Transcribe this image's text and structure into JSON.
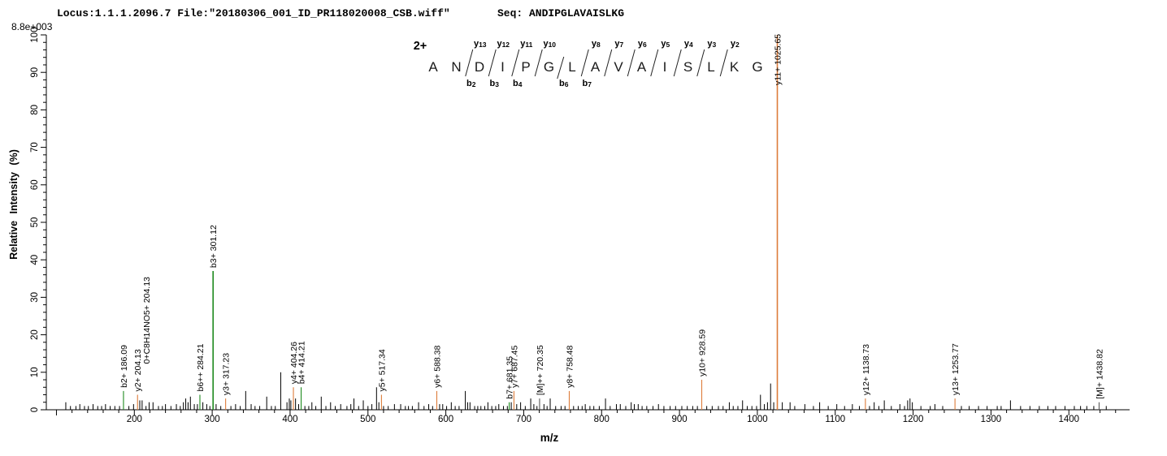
{
  "header": {
    "locus_file": "Locus:1.1.1.2096.7 File:\"20180306_001_ID_PR118020008_CSB.wiff\"",
    "seq_label": "Seq: ANDIPGLAVAISLKG",
    "intensity_scale": "8.8e+003"
  },
  "colors": {
    "header_blue": "#2828c0",
    "charge_blue": "#1717dd",
    "y_ion": "#dd7c3a",
    "b_ion": "#1f8a1f",
    "neutral_loss": "#3ccc3c",
    "precursor": "#7a7a7a",
    "precursor_line": "#5a5a5a",
    "noise": "#000000",
    "axis": "#000000"
  },
  "sequence_panel": {
    "charge": "2+",
    "residues": [
      "A",
      "N",
      "D",
      "I",
      "P",
      "G",
      "L",
      "A",
      "V",
      "A",
      "I",
      "S",
      "L",
      "K",
      "G"
    ],
    "y_ions": [
      {
        "letter": "y",
        "sub": "13",
        "gap": 1
      },
      {
        "letter": "y",
        "sub": "12",
        "gap": 2
      },
      {
        "letter": "y",
        "sub": "11",
        "gap": 3
      },
      {
        "letter": "y",
        "sub": "10",
        "gap": 4
      },
      {
        "letter": "y",
        "sub": "8",
        "gap": 6
      },
      {
        "letter": "y",
        "sub": "7",
        "gap": 7
      },
      {
        "letter": "y",
        "sub": "6",
        "gap": 8
      },
      {
        "letter": "y",
        "sub": "5",
        "gap": 9
      },
      {
        "letter": "y",
        "sub": "4",
        "gap": 10
      },
      {
        "letter": "y",
        "sub": "3",
        "gap": 11
      },
      {
        "letter": "y",
        "sub": "2",
        "gap": 12
      }
    ],
    "b_ions": [
      {
        "letter": "b",
        "sub": "2",
        "gap": 1
      },
      {
        "letter": "b",
        "sub": "3",
        "gap": 2
      },
      {
        "letter": "b",
        "sub": "4",
        "gap": 3
      },
      {
        "letter": "b",
        "sub": "6",
        "gap": 5
      },
      {
        "letter": "b",
        "sub": "7",
        "gap": 6
      }
    ]
  },
  "chart_data": {
    "type": "bar",
    "subtype": "ms2-stick-spectrum",
    "title": "",
    "xlabel": "m/z",
    "ylabel": "Relative Intensity (%)",
    "xlim": [
      87,
      1478
    ],
    "ylim": [
      0,
      100
    ],
    "x_tick_labels": [
      200,
      300,
      400,
      500,
      600,
      700,
      800,
      900,
      1000,
      1100,
      1200,
      1300,
      1400
    ],
    "x_minor_step": 20,
    "y_ticks": [
      0,
      10,
      20,
      30,
      40,
      50,
      60,
      70,
      80,
      90,
      100
    ],
    "y_minor_step": 2,
    "labeled_peaks": [
      {
        "mz": 186.09,
        "intensity": 5,
        "label": "b2+ 186.09",
        "ion": "b_ion"
      },
      {
        "mz": 204.13,
        "intensity": 4,
        "label": "y2+ 204.13",
        "ion": "y_ion"
      },
      {
        "mz": 204.13,
        "intensity": 4,
        "label": "0+C8H14NO5+ 204.13",
        "ion": "neutral_loss",
        "no_line": true,
        "raise": 34,
        "dx": 11
      },
      {
        "mz": 284.21,
        "intensity": 4,
        "label": "b6++ 284.21",
        "ion": "b_ion"
      },
      {
        "mz": 301.12,
        "intensity": 37,
        "label": "b3+ 301.12",
        "ion": "b_ion"
      },
      {
        "mz": 317.23,
        "intensity": 3,
        "label": "y3+ 317.23",
        "ion": "y_ion"
      },
      {
        "mz": 404.26,
        "intensity": 6,
        "label": "y4+ 404.26",
        "ion": "y_ion"
      },
      {
        "mz": 414.21,
        "intensity": 6,
        "label": "b4+ 414.21",
        "ion": "b_ion"
      },
      {
        "mz": 517.34,
        "intensity": 4,
        "label": "y5+ 517.34",
        "ion": "y_ion"
      },
      {
        "mz": 588.38,
        "intensity": 5,
        "label": "y6+ 588.38",
        "ion": "y_ion"
      },
      {
        "mz": 681.35,
        "intensity": 2,
        "label": "b7+ 681.35",
        "ion": "b_ion"
      },
      {
        "mz": 687.45,
        "intensity": 5,
        "label": "y7+ 687.45",
        "ion": "y_ion"
      },
      {
        "mz": 720.35,
        "intensity": 3,
        "label": "[M]++ 720.35",
        "ion": "precursor"
      },
      {
        "mz": 758.48,
        "intensity": 5,
        "label": "y8+ 758.48",
        "ion": "y_ion"
      },
      {
        "mz": 928.59,
        "intensity": 8,
        "label": "y10+ 928.59",
        "ion": "y_ion"
      },
      {
        "mz": 1025.65,
        "intensity": 100,
        "label": "y11+ 1025.65",
        "ion": "y_ion",
        "raise": -66
      },
      {
        "mz": 1138.73,
        "intensity": 3,
        "label": "y12+ 1138.73",
        "ion": "y_ion"
      },
      {
        "mz": 1253.77,
        "intensity": 3,
        "label": "y13+ 1253.77",
        "ion": "y_ion"
      },
      {
        "mz": 1438.82,
        "intensity": 2,
        "label": "[M]+ 1438.82",
        "ion": "precursor"
      }
    ],
    "background_peaks": [
      [
        112,
        2
      ],
      [
        118,
        1
      ],
      [
        125,
        1
      ],
      [
        130,
        1.5
      ],
      [
        136,
        1
      ],
      [
        141,
        1
      ],
      [
        147,
        1.5
      ],
      [
        153,
        1
      ],
      [
        158,
        1
      ],
      [
        163,
        1.5
      ],
      [
        169,
        1
      ],
      [
        175,
        1
      ],
      [
        181,
        1
      ],
      [
        193,
        1
      ],
      [
        199,
        1.5
      ],
      [
        207,
        2.5
      ],
      [
        210,
        2.5
      ],
      [
        215,
        1
      ],
      [
        219,
        2
      ],
      [
        224,
        2
      ],
      [
        231,
        1
      ],
      [
        236,
        1
      ],
      [
        240,
        1.5
      ],
      [
        247,
        1
      ],
      [
        254,
        1.5
      ],
      [
        259,
        1
      ],
      [
        263,
        2
      ],
      [
        266,
        3
      ],
      [
        269,
        2
      ],
      [
        272,
        3.5
      ],
      [
        277,
        1.5
      ],
      [
        281,
        1.5
      ],
      [
        288,
        2
      ],
      [
        293,
        1.5
      ],
      [
        297,
        1
      ],
      [
        305,
        1.5
      ],
      [
        311,
        1
      ],
      [
        324,
        1
      ],
      [
        330,
        1.5
      ],
      [
        336,
        1
      ],
      [
        343,
        5
      ],
      [
        350,
        1.5
      ],
      [
        355,
        1
      ],
      [
        361,
        1
      ],
      [
        370,
        3.5
      ],
      [
        376,
        1
      ],
      [
        381,
        1
      ],
      [
        388,
        10
      ],
      [
        396,
        2
      ],
      [
        399,
        3
      ],
      [
        401,
        2.5
      ],
      [
        407,
        3
      ],
      [
        411,
        1.5
      ],
      [
        419,
        1
      ],
      [
        424,
        1
      ],
      [
        428,
        2
      ],
      [
        433,
        1
      ],
      [
        440,
        3.5
      ],
      [
        446,
        1
      ],
      [
        452,
        2
      ],
      [
        458,
        1
      ],
      [
        465,
        1.5
      ],
      [
        473,
        1
      ],
      [
        478,
        1.5
      ],
      [
        482,
        3
      ],
      [
        488,
        1
      ],
      [
        494,
        2.5
      ],
      [
        500,
        1
      ],
      [
        505,
        1.5
      ],
      [
        511,
        6
      ],
      [
        514,
        2
      ],
      [
        520,
        1
      ],
      [
        526,
        1
      ],
      [
        534,
        1.5
      ],
      [
        542,
        1.5
      ],
      [
        548,
        1
      ],
      [
        552,
        1
      ],
      [
        557,
        1
      ],
      [
        565,
        2
      ],
      [
        572,
        1
      ],
      [
        578,
        1.5
      ],
      [
        583,
        1
      ],
      [
        592,
        1.5
      ],
      [
        596,
        1.5
      ],
      [
        601,
        1
      ],
      [
        607,
        2
      ],
      [
        612,
        1
      ],
      [
        617,
        1
      ],
      [
        625,
        5
      ],
      [
        628,
        2
      ],
      [
        631,
        2
      ],
      [
        637,
        1
      ],
      [
        641,
        1
      ],
      [
        645,
        1
      ],
      [
        650,
        1
      ],
      [
        654,
        2
      ],
      [
        659,
        1
      ],
      [
        664,
        1
      ],
      [
        668,
        1.5
      ],
      [
        674,
        1
      ],
      [
        679,
        1
      ],
      [
        684,
        2
      ],
      [
        691,
        1.5
      ],
      [
        696,
        2
      ],
      [
        702,
        1
      ],
      [
        709,
        3
      ],
      [
        713,
        1.5
      ],
      [
        717,
        1
      ],
      [
        726,
        1.5
      ],
      [
        730,
        1
      ],
      [
        734,
        3
      ],
      [
        741,
        1
      ],
      [
        748,
        1
      ],
      [
        753,
        1
      ],
      [
        764,
        1
      ],
      [
        770,
        1
      ],
      [
        775,
        1
      ],
      [
        779,
        1.5
      ],
      [
        785,
        1
      ],
      [
        790,
        1
      ],
      [
        797,
        1
      ],
      [
        805,
        3
      ],
      [
        811,
        1
      ],
      [
        819,
        1.5
      ],
      [
        824,
        1.5
      ],
      [
        831,
        1
      ],
      [
        838,
        2
      ],
      [
        842,
        1.5
      ],
      [
        847,
        1.5
      ],
      [
        852,
        1
      ],
      [
        858,
        1
      ],
      [
        866,
        1
      ],
      [
        873,
        1.5
      ],
      [
        880,
        1
      ],
      [
        888,
        1
      ],
      [
        895,
        1
      ],
      [
        903,
        1
      ],
      [
        910,
        1
      ],
      [
        917,
        1
      ],
      [
        923,
        1
      ],
      [
        935,
        1
      ],
      [
        942,
        1
      ],
      [
        950,
        1
      ],
      [
        956,
        1
      ],
      [
        964,
        2
      ],
      [
        969,
        1
      ],
      [
        975,
        1
      ],
      [
        981,
        2.5
      ],
      [
        987,
        1
      ],
      [
        993,
        1
      ],
      [
        999,
        1
      ],
      [
        1004,
        4
      ],
      [
        1009,
        1.5
      ],
      [
        1013,
        2
      ],
      [
        1017,
        7
      ],
      [
        1021,
        2
      ],
      [
        1032,
        2
      ],
      [
        1042,
        2
      ],
      [
        1048,
        1
      ],
      [
        1061,
        1.5
      ],
      [
        1072,
        1
      ],
      [
        1080,
        2
      ],
      [
        1091,
        1
      ],
      [
        1102,
        1.5
      ],
      [
        1112,
        1
      ],
      [
        1122,
        1.5
      ],
      [
        1131,
        1
      ],
      [
        1144,
        1
      ],
      [
        1150,
        2
      ],
      [
        1156,
        1
      ],
      [
        1163,
        2.5
      ],
      [
        1172,
        1
      ],
      [
        1183,
        1.5
      ],
      [
        1189,
        1
      ],
      [
        1193,
        2.5
      ],
      [
        1196,
        3
      ],
      [
        1199,
        2
      ],
      [
        1210,
        1
      ],
      [
        1222,
        1
      ],
      [
        1228,
        1.5
      ],
      [
        1238,
        1
      ],
      [
        1262,
        1
      ],
      [
        1272,
        1
      ],
      [
        1284,
        1
      ],
      [
        1295,
        1
      ],
      [
        1308,
        1
      ],
      [
        1313,
        1
      ],
      [
        1325,
        2.5
      ],
      [
        1338,
        1
      ],
      [
        1350,
        1
      ],
      [
        1362,
        1
      ],
      [
        1373,
        1
      ],
      [
        1383,
        1
      ],
      [
        1395,
        1
      ],
      [
        1407,
        1
      ],
      [
        1415,
        1
      ],
      [
        1423,
        1
      ],
      [
        1432,
        1
      ],
      [
        1448,
        1
      ]
    ]
  }
}
